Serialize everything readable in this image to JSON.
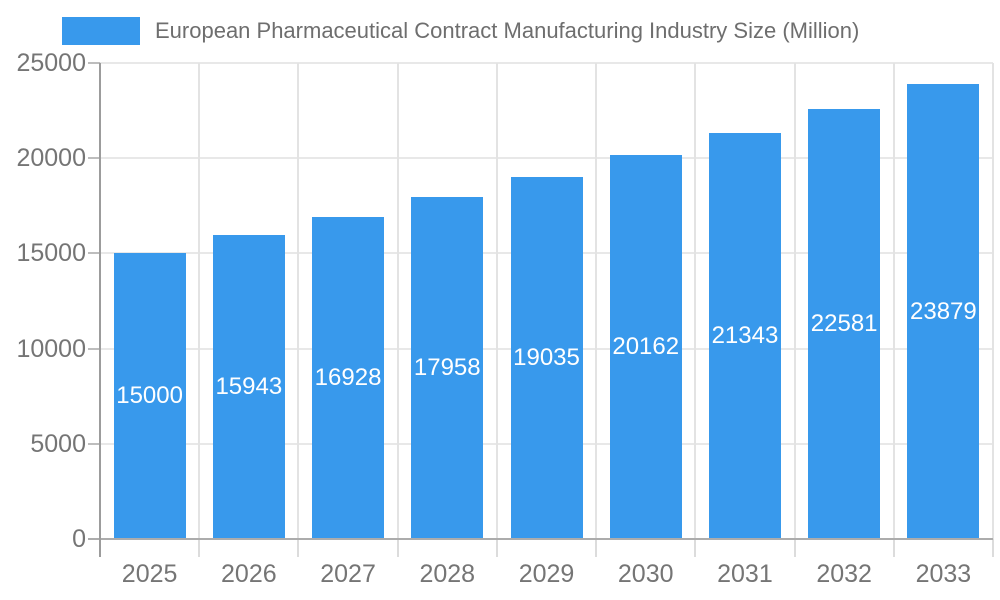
{
  "legend": {
    "swatch_icon": "legend-color-swatch",
    "label": "European Pharmaceutical Contract Manufacturing Industry Size (Million)"
  },
  "chart_data": {
    "type": "bar",
    "title": "European Pharmaceutical Contract Manufacturing Industry Size (Million)",
    "categories": [
      "2025",
      "2026",
      "2027",
      "2028",
      "2029",
      "2030",
      "2031",
      "2032",
      "2033"
    ],
    "values": [
      15000,
      15943,
      16928,
      17958,
      19035,
      20162,
      21343,
      22581,
      23879
    ],
    "value_labels": [
      "15000",
      "15943",
      "16928",
      "17958",
      "19035",
      "20162",
      "21343",
      "22581",
      "23879"
    ],
    "xlabel": "",
    "ylabel": "",
    "ylim": [
      0,
      25000
    ],
    "yticks": [
      0,
      5000,
      10000,
      15000,
      20000,
      25000
    ],
    "ytick_labels": [
      "0",
      "5000",
      "10000",
      "15000",
      "20000",
      "25000"
    ],
    "grid": true,
    "legend_position": "top-left",
    "value_label_position": "inside-center"
  },
  "colors": {
    "bar": "#3899EC",
    "value_label": "#ffffff",
    "hgrid": "#e8e8e8",
    "vgrid": "#e3e3e3",
    "y_axis_line": "#9c9c9c",
    "baseline": "#acacac",
    "y_tick": "#bdbdbd",
    "x_tick": "#dcdcdc",
    "axis_text": "#757575",
    "title_text": "#6e6e6e",
    "background": "#ffffff"
  }
}
